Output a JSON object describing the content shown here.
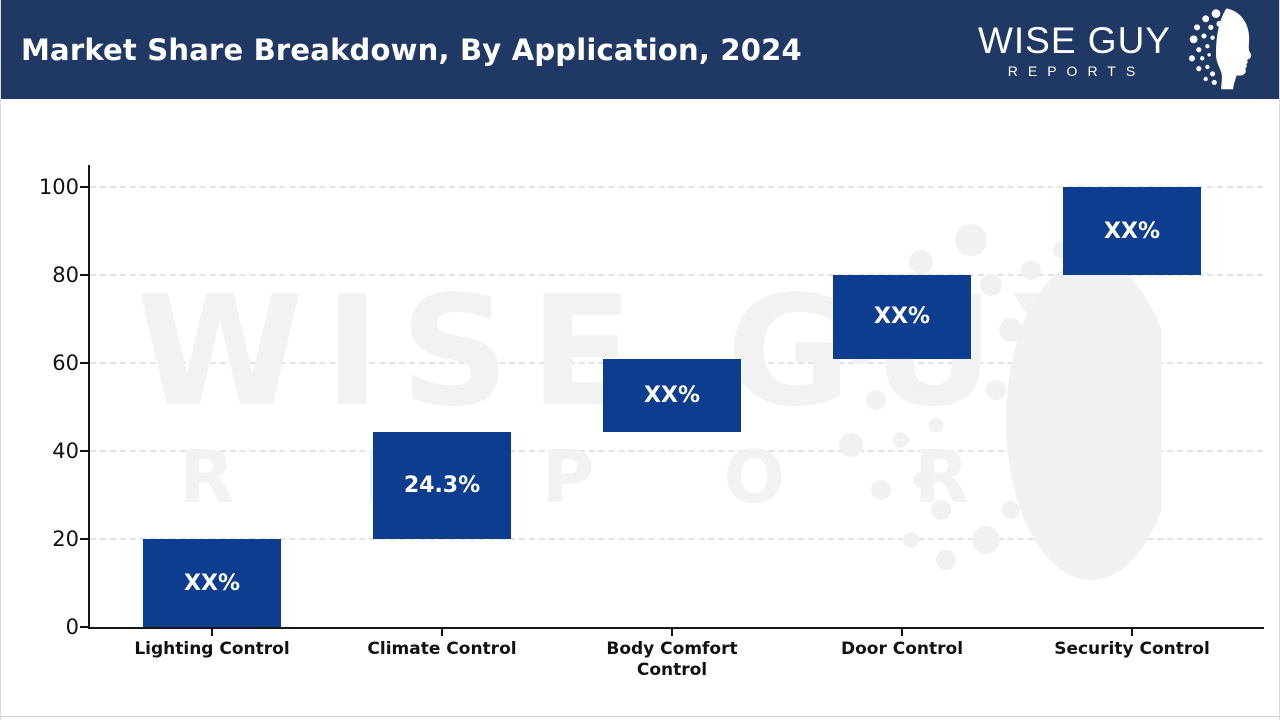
{
  "header": {
    "title": "Market Share Breakdown, By Application, 2024",
    "logo": {
      "line1": "WISE GUY",
      "line2": "REPORTS"
    }
  },
  "watermark": {
    "line1": "WISE GUY",
    "line2": "R E P O R T S"
  },
  "colors": {
    "header_bg": "#1f3864",
    "bar_fill": "#0c3d8f",
    "bar_label_text": "#ffffff",
    "gridline": "#e3e3e3",
    "axis": "#161616",
    "tick_text": "#111111",
    "watermark": "#f2f2f3"
  },
  "icons": {
    "logo_face": "dotted-face-profile-icon",
    "watermark_face": "dotted-face-profile-watermark-icon"
  },
  "chart_data": {
    "type": "bar",
    "subtype": "waterfall-step",
    "title": "Market Share Breakdown, By Application, 2024",
    "categories": [
      "Lighting Control",
      "Climate Control",
      "Body Comfort Control",
      "Door Control",
      "Security Control"
    ],
    "segments": [
      {
        "category": "Lighting Control",
        "start": 0,
        "end": 20,
        "label": "XX%"
      },
      {
        "category": "Climate Control",
        "start": 20,
        "end": 44.3,
        "label": "24.3%"
      },
      {
        "category": "Body Comfort Control",
        "start": 44.3,
        "end": 61,
        "label": "XX%"
      },
      {
        "category": "Door Control",
        "start": 61,
        "end": 80,
        "label": "XX%"
      },
      {
        "category": "Security Control",
        "start": 80,
        "end": 100,
        "label": "XX%"
      }
    ],
    "yticks": [
      0,
      20,
      40,
      60,
      80,
      100
    ],
    "ylim": [
      0,
      105
    ],
    "xlabel": "",
    "ylabel": "",
    "grid": "horizontal-dashed",
    "legend": "none",
    "bar_color": "#0c3d8f"
  }
}
